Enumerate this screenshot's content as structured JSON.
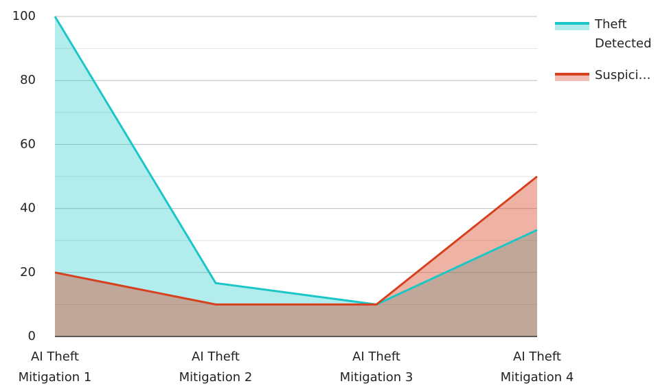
{
  "chart_data": {
    "type": "area",
    "categories": [
      "AI Theft Mitigation 1",
      "AI Theft Mitigation 2",
      "AI Theft Mitigation 3",
      "AI Theft Mitigation 4"
    ],
    "series": [
      {
        "name": "Theft Detected",
        "color": "#1cc6c6",
        "values": [
          100,
          16.7,
          10,
          33.3
        ]
      },
      {
        "name": "Suspici…",
        "color": "#d7401f",
        "values": [
          20,
          10,
          10,
          50
        ]
      }
    ],
    "ylim": [
      0,
      100
    ],
    "yticks": [
      0,
      20,
      40,
      60,
      80,
      100
    ],
    "minor_yticks": [
      10,
      30,
      50,
      70,
      90
    ],
    "grid": true
  }
}
